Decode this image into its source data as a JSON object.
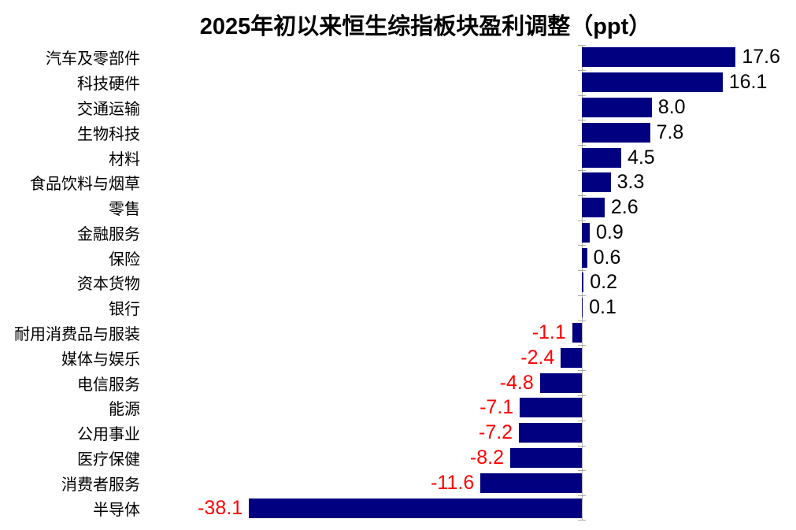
{
  "chart_data": {
    "type": "bar",
    "orientation": "horizontal",
    "title": "2025年初以来恒生综指板块盈利调整（ppt）",
    "categories": [
      "汽车及零部件",
      "科技硬件",
      "交通运输",
      "生物科技",
      "材料",
      "食品饮料与烟草",
      "零售",
      "金融服务",
      "保险",
      "资本货物",
      "银行",
      "耐用消费品与服装",
      "媒体与娱乐",
      "电信服务",
      "能源",
      "公用事业",
      "医疗保健",
      "消费者服务",
      "半导体"
    ],
    "values": [
      17.6,
      16.1,
      8.0,
      7.8,
      4.5,
      3.3,
      2.6,
      0.9,
      0.6,
      0.2,
      0.1,
      -1.1,
      -2.4,
      -4.8,
      -7.1,
      -7.2,
      -8.2,
      -11.6,
      -38.1
    ],
    "value_labels": [
      "17.6",
      "16.1",
      "8.0",
      "7.8",
      "4.5",
      "3.3",
      "2.6",
      "0.9",
      "0.6",
      "0.2",
      "0.1",
      "-1.1",
      "-2.4",
      "-4.8",
      "-7.1",
      "-7.2",
      "-8.2",
      "-11.6",
      "-38.1"
    ],
    "xlim": [
      -40,
      20
    ],
    "grid": false,
    "legend": false,
    "value_label_position": "outside-end",
    "axis": {
      "zero_line": true,
      "tick_marks_at_category_boundaries": true
    },
    "colors": {
      "bar": "#000080",
      "positive_value_label": "#000000",
      "negative_value_label": "#FF0000",
      "category_label": "#000000",
      "axis": "#ABABAB",
      "title": "#000000"
    }
  }
}
